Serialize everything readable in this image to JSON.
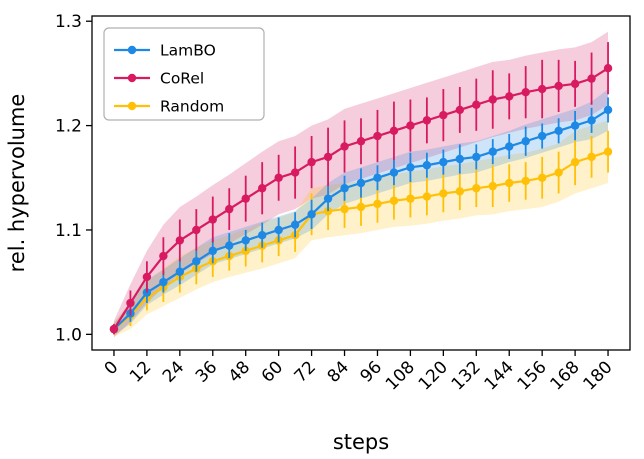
{
  "chart_data": {
    "type": "line",
    "title": "",
    "xlabel": "steps",
    "ylabel": "rel. hypervolume",
    "xlim": [
      -8,
      188
    ],
    "ylim": [
      0.985,
      1.305
    ],
    "x_ticks": [
      0,
      12,
      24,
      36,
      48,
      60,
      72,
      84,
      96,
      108,
      120,
      132,
      144,
      156,
      168,
      180
    ],
    "y_ticks": [
      1.0,
      1.1,
      1.2,
      1.3
    ],
    "grid": false,
    "legend_position": "upper left",
    "marker": "circle",
    "error_bars": true,
    "confidence_bands": true,
    "x": [
      0,
      6,
      12,
      18,
      24,
      30,
      36,
      42,
      48,
      54,
      60,
      66,
      72,
      78,
      84,
      90,
      96,
      102,
      108,
      114,
      120,
      126,
      132,
      138,
      144,
      150,
      156,
      162,
      168,
      174,
      180
    ],
    "series": [
      {
        "name": "LamBO",
        "color": "#1E88E5",
        "values": [
          1.005,
          1.02,
          1.04,
          1.05,
          1.06,
          1.07,
          1.08,
          1.085,
          1.09,
          1.095,
          1.1,
          1.105,
          1.115,
          1.13,
          1.14,
          1.145,
          1.15,
          1.155,
          1.16,
          1.162,
          1.165,
          1.168,
          1.17,
          1.175,
          1.18,
          1.185,
          1.19,
          1.195,
          1.2,
          1.205,
          1.215
        ],
        "err": [
          0.004,
          0.008,
          0.01,
          0.01,
          0.012,
          0.01,
          0.012,
          0.012,
          0.01,
          0.012,
          0.012,
          0.012,
          0.014,
          0.012,
          0.012,
          0.014,
          0.012,
          0.012,
          0.014,
          0.012,
          0.012,
          0.014,
          0.012,
          0.012,
          0.012,
          0.014,
          0.012,
          0.012,
          0.014,
          0.012,
          0.012
        ],
        "band": [
          0.006,
          0.01,
          0.012,
          0.012,
          0.013,
          0.013,
          0.013,
          0.013,
          0.013,
          0.013,
          0.013,
          0.013,
          0.015,
          0.015,
          0.015,
          0.015,
          0.015,
          0.015,
          0.015,
          0.015,
          0.015,
          0.015,
          0.015,
          0.015,
          0.015,
          0.016,
          0.016,
          0.016,
          0.016,
          0.018,
          0.02
        ]
      },
      {
        "name": "CoRel",
        "color": "#D81B60",
        "values": [
          1.005,
          1.03,
          1.055,
          1.075,
          1.09,
          1.1,
          1.11,
          1.12,
          1.13,
          1.14,
          1.15,
          1.155,
          1.165,
          1.17,
          1.18,
          1.185,
          1.19,
          1.195,
          1.2,
          1.205,
          1.21,
          1.215,
          1.22,
          1.225,
          1.228,
          1.232,
          1.235,
          1.238,
          1.24,
          1.245,
          1.255
        ],
        "err": [
          0.005,
          0.012,
          0.015,
          0.018,
          0.02,
          0.02,
          0.022,
          0.02,
          0.022,
          0.025,
          0.022,
          0.025,
          0.025,
          0.028,
          0.025,
          0.022,
          0.025,
          0.028,
          0.025,
          0.022,
          0.025,
          0.022,
          0.025,
          0.028,
          0.022,
          0.025,
          0.028,
          0.025,
          0.022,
          0.025,
          0.025
        ],
        "band": [
          0.008,
          0.018,
          0.025,
          0.03,
          0.032,
          0.032,
          0.033,
          0.033,
          0.034,
          0.035,
          0.035,
          0.035,
          0.035,
          0.036,
          0.036,
          0.036,
          0.036,
          0.036,
          0.036,
          0.036,
          0.036,
          0.036,
          0.036,
          0.036,
          0.035,
          0.035,
          0.035,
          0.035,
          0.035,
          0.035,
          0.035
        ]
      },
      {
        "name": "Random",
        "color": "#FFC107",
        "values": [
          1.005,
          1.018,
          1.035,
          1.045,
          1.055,
          1.063,
          1.07,
          1.075,
          1.08,
          1.085,
          1.09,
          1.095,
          1.115,
          1.118,
          1.12,
          1.122,
          1.125,
          1.128,
          1.13,
          1.132,
          1.135,
          1.137,
          1.14,
          1.142,
          1.145,
          1.147,
          1.15,
          1.155,
          1.165,
          1.17,
          1.175
        ],
        "err": [
          0.005,
          0.01,
          0.012,
          0.014,
          0.015,
          0.015,
          0.015,
          0.014,
          0.015,
          0.016,
          0.015,
          0.016,
          0.02,
          0.018,
          0.018,
          0.018,
          0.018,
          0.018,
          0.018,
          0.018,
          0.018,
          0.018,
          0.018,
          0.02,
          0.018,
          0.018,
          0.02,
          0.02,
          0.022,
          0.02,
          0.02
        ],
        "band": [
          0.007,
          0.013,
          0.016,
          0.018,
          0.02,
          0.02,
          0.02,
          0.02,
          0.021,
          0.022,
          0.022,
          0.022,
          0.025,
          0.025,
          0.025,
          0.025,
          0.025,
          0.025,
          0.026,
          0.026,
          0.026,
          0.026,
          0.026,
          0.027,
          0.027,
          0.027,
          0.028,
          0.028,
          0.03,
          0.03,
          0.03
        ]
      }
    ],
    "legend_entries": [
      "LamBO",
      "CoRel",
      "Random"
    ]
  }
}
